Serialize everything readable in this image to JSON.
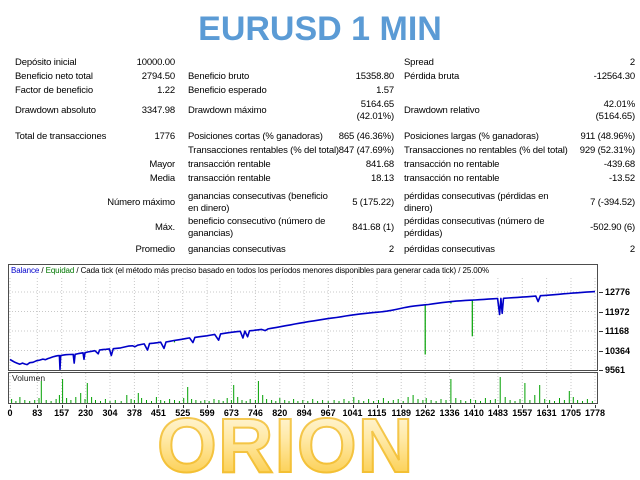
{
  "title": "EURUSD 1 MIN",
  "watermark": "ORION",
  "stats": {
    "rows": [
      {
        "cells": [
          "Depósito inicial",
          "10000.00",
          "",
          "",
          "Spread",
          "2"
        ]
      },
      {
        "cells": [
          "Beneficio neto total",
          "2794.50",
          "Beneficio bruto",
          "15358.80",
          "Pérdida bruta",
          "-12564.30"
        ]
      },
      {
        "cells": [
          "Factor de beneficio",
          "1.22",
          "Beneficio esperado",
          "1.57",
          "",
          ""
        ]
      },
      {
        "cells": [
          "Drawdown absoluto",
          "3347.98",
          "Drawdown máximo",
          "5164.65\n(42.01%)",
          "Drawdown relativo",
          "42.01%\n(5164.65)"
        ],
        "tall": true,
        "gap_after": 7
      },
      {
        "cells": [
          "Total de transacciones",
          "1776",
          "Posiciones cortas (% ganadoras)",
          "865 (46.36%)",
          "Posiciones largas (% ganadoras)",
          "911 (48.96%)"
        ]
      },
      {
        "cells": [
          "",
          "",
          "Transacciones rentables (% del total)",
          "847 (47.69%)",
          "Transacciones no rentables (% del total)",
          "929 (52.31%)"
        ]
      },
      {
        "cells": [
          "",
          "Mayor",
          "transacción rentable",
          "841.68",
          "transacción no rentable",
          "-439.68"
        ]
      },
      {
        "cells": [
          "",
          "Media",
          "transacción rentable",
          "18.13",
          "transacción no rentable",
          "-13.52"
        ]
      },
      {
        "cells": [
          "",
          "Número máximo",
          "ganancias consecutivas (beneficio en dinero)",
          "5 (175.22)",
          "pérdidas consecutivas (pérdidas en dinero)",
          "7 (-394.52)"
        ],
        "tall": true,
        "wrap": true,
        "gap_before": 4
      },
      {
        "cells": [
          "",
          "Máx.",
          "beneficio consecutivo (número de ganancias)",
          "841.68 (1)",
          "pérdidas consecutivas (número de pérdidas)",
          "-502.90 (6)"
        ],
        "tall": true,
        "wrap": true
      },
      {
        "cells": [
          "",
          "Promedio",
          "ganancias consecutivas",
          "2",
          "pérdidas consecutivas",
          "2"
        ],
        "gap_before": 3
      }
    ]
  },
  "chart_data": {
    "type": "line",
    "legend": [
      {
        "text": "Balance",
        "color": "#0000cc"
      },
      {
        "text": " / ",
        "color": "#000000"
      },
      {
        "text": "Equidad",
        "color": "#007700"
      },
      {
        "text": " / Cada tick (el método más preciso basado en todos los períodos menores disponibles para generar cada tick) / 25.00%",
        "color": "#000000"
      }
    ],
    "y_ticks": [
      12776,
      11972,
      11168,
      10364,
      9561
    ],
    "x_ticks": [
      0,
      83,
      157,
      230,
      304,
      378,
      451,
      525,
      599,
      673,
      746,
      820,
      894,
      967,
      1041,
      1115,
      1189,
      1262,
      1336,
      1410,
      1483,
      1557,
      1631,
      1705,
      1778
    ],
    "x_max": 1778,
    "y_min": 9561,
    "y_max": 12776,
    "balance_color": "#0000c8",
    "equity_color": "#00a000",
    "grid_color": "#c8c8c8",
    "series": [
      {
        "name": "Balance",
        "points": [
          [
            0,
            9995
          ],
          [
            8,
            9930
          ],
          [
            15,
            9880
          ],
          [
            22,
            9840
          ],
          [
            30,
            9800
          ],
          [
            38,
            9845
          ],
          [
            45,
            9810
          ],
          [
            52,
            9785
          ],
          [
            60,
            9860
          ],
          [
            70,
            9880
          ],
          [
            80,
            9940
          ],
          [
            90,
            9970
          ],
          [
            100,
            10010
          ],
          [
            108,
            9985
          ],
          [
            115,
            10030
          ],
          [
            122,
            10060
          ],
          [
            130,
            10100
          ],
          [
            138,
            10130
          ],
          [
            145,
            10150
          ],
          [
            150,
            10155
          ],
          [
            152,
            9590
          ],
          [
            154,
            10160
          ],
          [
            162,
            10175
          ],
          [
            170,
            10190
          ],
          [
            180,
            10200
          ],
          [
            192,
            10205
          ],
          [
            195,
            9845
          ],
          [
            198,
            10210
          ],
          [
            208,
            10235
          ],
          [
            215,
            10255
          ],
          [
            222,
            10270
          ],
          [
            225,
            10000
          ],
          [
            228,
            10280
          ],
          [
            238,
            10305
          ],
          [
            248,
            10330
          ],
          [
            258,
            10355
          ],
          [
            268,
            10230
          ],
          [
            272,
            10380
          ],
          [
            282,
            10400
          ],
          [
            292,
            10415
          ],
          [
            302,
            10430
          ],
          [
            308,
            10160
          ],
          [
            314,
            10440
          ],
          [
            325,
            10455
          ],
          [
            336,
            10470
          ],
          [
            348,
            10510
          ],
          [
            360,
            10545
          ],
          [
            372,
            10560
          ],
          [
            380,
            10520
          ],
          [
            388,
            10585
          ],
          [
            398,
            10610
          ],
          [
            408,
            10635
          ],
          [
            418,
            10380
          ],
          [
            424,
            10650
          ],
          [
            436,
            10665
          ],
          [
            448,
            10685
          ],
          [
            458,
            10705
          ],
          [
            468,
            10450
          ],
          [
            474,
            10715
          ],
          [
            486,
            10745
          ],
          [
            498,
            10775
          ],
          [
            510,
            10800
          ],
          [
            522,
            10825
          ],
          [
            534,
            10855
          ],
          [
            546,
            10885
          ],
          [
            556,
            10690
          ],
          [
            562,
            10905
          ],
          [
            574,
            10930
          ],
          [
            586,
            10950
          ],
          [
            598,
            10970
          ],
          [
            610,
            11000
          ],
          [
            622,
            11030
          ],
          [
            634,
            10790
          ],
          [
            640,
            11050
          ],
          [
            652,
            11075
          ],
          [
            664,
            11100
          ],
          [
            676,
            11120
          ],
          [
            688,
            11140
          ],
          [
            700,
            11155
          ],
          [
            708,
            10880
          ],
          [
            714,
            11165
          ],
          [
            722,
            10930
          ],
          [
            728,
            11175
          ],
          [
            740,
            11195
          ],
          [
            752,
            11215
          ],
          [
            764,
            11235
          ],
          [
            776,
            11185
          ],
          [
            784,
            11255
          ],
          [
            796,
            11285
          ],
          [
            810,
            11315
          ],
          [
            824,
            11350
          ],
          [
            838,
            11385
          ],
          [
            852,
            11420
          ],
          [
            866,
            11455
          ],
          [
            880,
            11490
          ],
          [
            894,
            11525
          ],
          [
            908,
            11555
          ],
          [
            922,
            11585
          ],
          [
            936,
            11615
          ],
          [
            950,
            11645
          ],
          [
            964,
            11675
          ],
          [
            978,
            11700
          ],
          [
            992,
            11725
          ],
          [
            1006,
            11755
          ],
          [
            1020,
            11785
          ],
          [
            1034,
            11815
          ],
          [
            1048,
            11840
          ],
          [
            1062,
            11865
          ],
          [
            1076,
            11885
          ],
          [
            1090,
            11905
          ],
          [
            1104,
            11925
          ],
          [
            1118,
            11945
          ],
          [
            1132,
            11965
          ],
          [
            1146,
            11990
          ],
          [
            1160,
            12020
          ],
          [
            1174,
            12060
          ],
          [
            1188,
            12100
          ],
          [
            1202,
            12140
          ],
          [
            1216,
            12175
          ],
          [
            1230,
            12205
          ],
          [
            1244,
            12225
          ],
          [
            1258,
            12245
          ],
          [
            1272,
            12260
          ],
          [
            1286,
            12290
          ],
          [
            1300,
            12315
          ],
          [
            1314,
            12340
          ],
          [
            1328,
            12360
          ],
          [
            1342,
            12380
          ],
          [
            1356,
            12400
          ],
          [
            1370,
            12415
          ],
          [
            1384,
            12428
          ],
          [
            1398,
            12438
          ],
          [
            1412,
            12448
          ],
          [
            1426,
            12460
          ],
          [
            1440,
            12472
          ],
          [
            1454,
            12484
          ],
          [
            1468,
            12496
          ],
          [
            1482,
            12508
          ],
          [
            1488,
            11850
          ],
          [
            1492,
            12512
          ],
          [
            1496,
            11900
          ],
          [
            1500,
            12518
          ],
          [
            1514,
            12530
          ],
          [
            1528,
            12542
          ],
          [
            1542,
            12554
          ],
          [
            1556,
            12566
          ],
          [
            1570,
            12580
          ],
          [
            1584,
            12594
          ],
          [
            1598,
            12608
          ],
          [
            1605,
            12380
          ],
          [
            1612,
            12622
          ],
          [
            1626,
            12636
          ],
          [
            1640,
            12650
          ],
          [
            1654,
            12664
          ],
          [
            1668,
            12680
          ],
          [
            1682,
            12700
          ],
          [
            1696,
            12715
          ],
          [
            1710,
            12730
          ],
          [
            1724,
            12745
          ],
          [
            1738,
            12760
          ],
          [
            1752,
            12772
          ],
          [
            1766,
            12784
          ],
          [
            1778,
            12794
          ]
        ]
      },
      {
        "name": "Equidad",
        "spikes": [
          [
            500,
            10700
          ],
          [
            1262,
            10200
          ],
          [
            1340,
            12300
          ],
          [
            1405,
            10950
          ]
        ]
      }
    ],
    "volume": {
      "label": "Volumen",
      "bars": [
        [
          5,
          4
        ],
        [
          18,
          2
        ],
        [
          30,
          6
        ],
        [
          45,
          3
        ],
        [
          60,
          2
        ],
        [
          75,
          3
        ],
        [
          88,
          5
        ],
        [
          95,
          22
        ],
        [
          110,
          3
        ],
        [
          125,
          2
        ],
        [
          140,
          4
        ],
        [
          150,
          8
        ],
        [
          160,
          24
        ],
        [
          172,
          5
        ],
        [
          185,
          3
        ],
        [
          200,
          6
        ],
        [
          215,
          10
        ],
        [
          228,
          4
        ],
        [
          235,
          20
        ],
        [
          248,
          6
        ],
        [
          260,
          3
        ],
        [
          275,
          2
        ],
        [
          290,
          4
        ],
        [
          304,
          2
        ],
        [
          320,
          3
        ],
        [
          338,
          2
        ],
        [
          355,
          8
        ],
        [
          368,
          4
        ],
        [
          378,
          3
        ],
        [
          390,
          10
        ],
        [
          400,
          5
        ],
        [
          415,
          3
        ],
        [
          430,
          2
        ],
        [
          445,
          6
        ],
        [
          458,
          3
        ],
        [
          470,
          2
        ],
        [
          485,
          4
        ],
        [
          500,
          3
        ],
        [
          515,
          2
        ],
        [
          528,
          5
        ],
        [
          540,
          16
        ],
        [
          552,
          4
        ],
        [
          565,
          3
        ],
        [
          580,
          2
        ],
        [
          592,
          3
        ],
        [
          605,
          2
        ],
        [
          620,
          4
        ],
        [
          635,
          3
        ],
        [
          648,
          2
        ],
        [
          660,
          5
        ],
        [
          673,
          3
        ],
        [
          680,
          18
        ],
        [
          692,
          6
        ],
        [
          705,
          3
        ],
        [
          718,
          2
        ],
        [
          730,
          4
        ],
        [
          746,
          3
        ],
        [
          755,
          22
        ],
        [
          768,
          8
        ],
        [
          780,
          4
        ],
        [
          795,
          3
        ],
        [
          808,
          2
        ],
        [
          820,
          5
        ],
        [
          835,
          3
        ],
        [
          848,
          2
        ],
        [
          862,
          4
        ],
        [
          875,
          2
        ],
        [
          890,
          3
        ],
        [
          905,
          2
        ],
        [
          920,
          4
        ],
        [
          935,
          2
        ],
        [
          950,
          3
        ],
        [
          967,
          2
        ],
        [
          985,
          3
        ],
        [
          1000,
          2
        ],
        [
          1015,
          4
        ],
        [
          1030,
          2
        ],
        [
          1045,
          6
        ],
        [
          1060,
          3
        ],
        [
          1075,
          2
        ],
        [
          1090,
          4
        ],
        [
          1105,
          2
        ],
        [
          1120,
          3
        ],
        [
          1135,
          5
        ],
        [
          1150,
          2
        ],
        [
          1165,
          3
        ],
        [
          1180,
          4
        ],
        [
          1195,
          2
        ],
        [
          1210,
          6
        ],
        [
          1225,
          8
        ],
        [
          1240,
          4
        ],
        [
          1255,
          3
        ],
        [
          1265,
          5
        ],
        [
          1280,
          3
        ],
        [
          1295,
          2
        ],
        [
          1310,
          4
        ],
        [
          1325,
          3
        ],
        [
          1340,
          24
        ],
        [
          1355,
          5
        ],
        [
          1370,
          3
        ],
        [
          1385,
          2
        ],
        [
          1400,
          4
        ],
        [
          1415,
          3
        ],
        [
          1430,
          2
        ],
        [
          1445,
          5
        ],
        [
          1460,
          3
        ],
        [
          1475,
          4
        ],
        [
          1490,
          26
        ],
        [
          1505,
          6
        ],
        [
          1520,
          3
        ],
        [
          1535,
          2
        ],
        [
          1550,
          4
        ],
        [
          1565,
          20
        ],
        [
          1580,
          3
        ],
        [
          1595,
          8
        ],
        [
          1610,
          18
        ],
        [
          1625,
          4
        ],
        [
          1640,
          3
        ],
        [
          1655,
          2
        ],
        [
          1670,
          5
        ],
        [
          1685,
          3
        ],
        [
          1700,
          12
        ],
        [
          1712,
          6
        ],
        [
          1725,
          3
        ],
        [
          1740,
          2
        ],
        [
          1755,
          4
        ],
        [
          1770,
          2
        ]
      ]
    }
  }
}
